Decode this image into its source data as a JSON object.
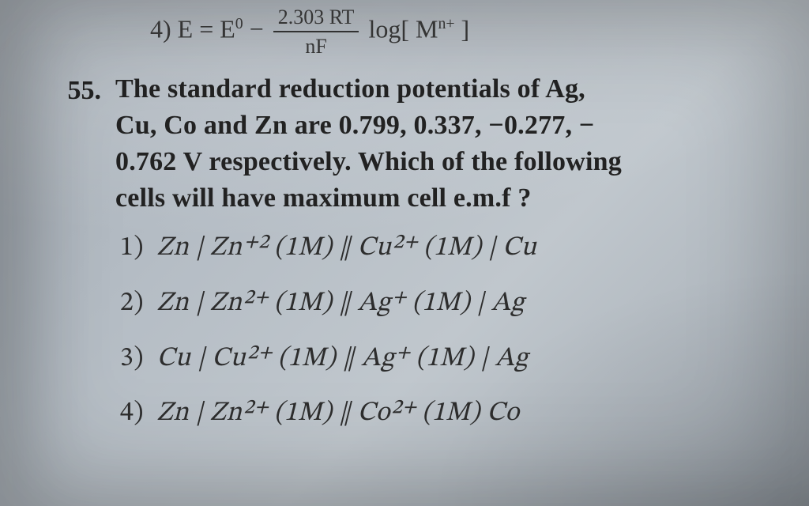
{
  "prev_option": {
    "num": "4)",
    "lhs": "E = E",
    "sup0": "0",
    "minus": " − ",
    "frac_num": "2.303 RT",
    "frac_den": "nF",
    "log": " log",
    "bracket_open": "[ M",
    "ion_sup": "n+",
    "bracket_close": " ]"
  },
  "question": {
    "number": "55.",
    "line1": "The standard reduction potentials of Ag,",
    "line2": "Cu, Co and Zn are 0.799, 0.337, −0.277, −",
    "line3": "0.762 V respectively. Which of the following",
    "line4": "cells will have maximum cell e.m.f ?"
  },
  "options": {
    "o1": {
      "num": "1)",
      "text": "Zn | Zn⁺² (1M) ‖ Cu²⁺ (1M) | Cu"
    },
    "o2": {
      "num": "2)",
      "text": "Zn | Zn²⁺ (1M) ‖ Ag⁺ (1M) | Ag"
    },
    "o3": {
      "num": "3)",
      "text": "Cu | Cu²⁺ (1M) ‖ Ag⁺ (1M) | Ag"
    },
    "o4": {
      "num": "4)",
      "text": "Zn | Zn²⁺ (1M) ‖ Co²⁺ (1M) Co"
    }
  },
  "colors": {
    "text": "#1a1a1a",
    "bg_light": "#c0c7cd",
    "bg_dark": "#a0a8b0"
  }
}
